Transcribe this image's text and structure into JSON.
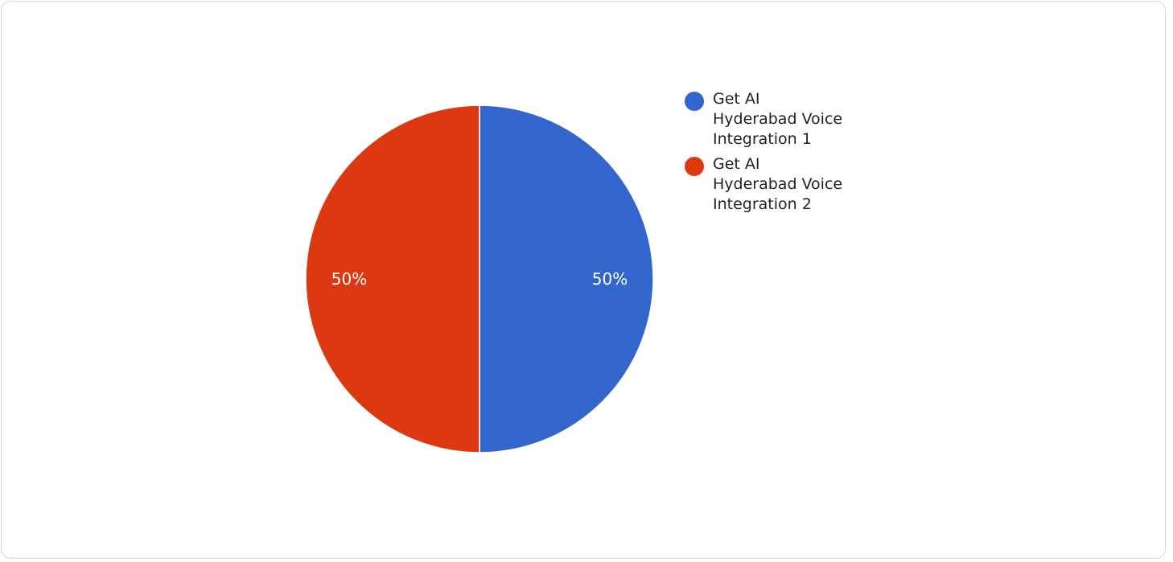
{
  "chart_data": {
    "type": "pie",
    "title": "",
    "slices": [
      {
        "label": "Get AI\nHyderabad Voice\nIntegration 1",
        "value": 50,
        "percent_label": "50%",
        "color": "#3366cc"
      },
      {
        "label": "Get AI\nHyderabad Voice\nIntegration 2",
        "value": 50,
        "percent_label": "50%",
        "color": "#dc3912"
      }
    ],
    "legend_position": "right"
  }
}
